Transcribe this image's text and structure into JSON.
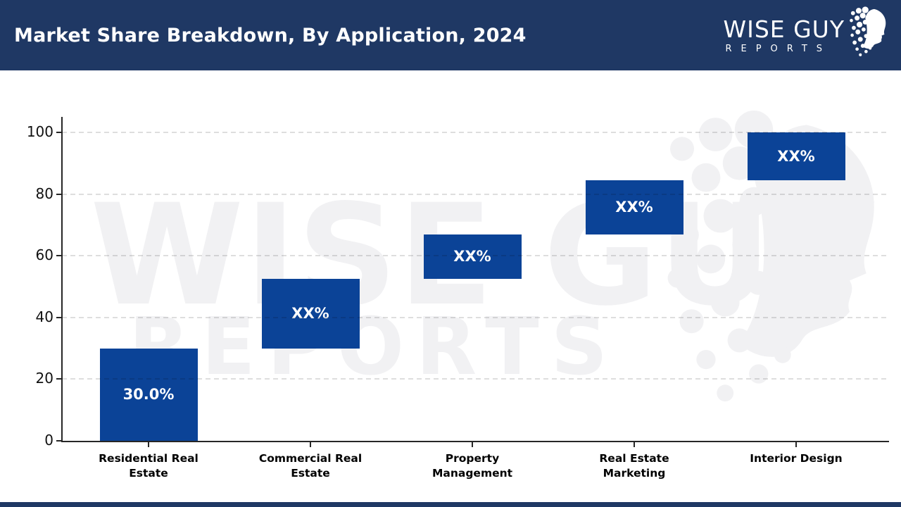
{
  "header": {
    "title": "Market Share Breakdown, By Application, 2024",
    "logo": {
      "line1": "WISE GUY",
      "line2": "REPORTS"
    }
  },
  "watermark": {
    "line1": "WISE GUY",
    "line2": "REPORTS"
  },
  "colors": {
    "header_bg": "#1f3864",
    "footer_bg": "#1f3864",
    "bar": "#0b4397",
    "bar_label": "#ffffff",
    "axis": "#262626",
    "gridline": "rgba(0,0,0,0.13)",
    "watermark": "#f1f1f3",
    "title_text": "#ffffff"
  },
  "chart_data": {
    "type": "bar",
    "subtype": "waterfall",
    "title": "Market Share Breakdown, By Application, 2024",
    "categories": [
      "Residential Real Estate",
      "Commercial Real Estate",
      "Property Management",
      "Real Estate Marketing",
      "Interior Design"
    ],
    "series": [
      {
        "name": "Market Share",
        "segments": [
          {
            "category": "Residential Real Estate",
            "start": 0,
            "end": 30,
            "label": "30.0%"
          },
          {
            "category": "Commercial Real Estate",
            "start": 30,
            "end": 52.5,
            "label": "XX%"
          },
          {
            "category": "Property Management",
            "start": 52.5,
            "end": 67,
            "label": "XX%"
          },
          {
            "category": "Real Estate Marketing",
            "start": 67,
            "end": 84.5,
            "label": "XX%"
          },
          {
            "category": "Interior Design",
            "start": 84.5,
            "end": 100,
            "label": "XX%"
          }
        ]
      }
    ],
    "xlabel": "",
    "ylabel": "",
    "ylim": [
      0,
      100
    ],
    "yticks": [
      0,
      20,
      40,
      60,
      80,
      100
    ],
    "grid": "horizontal-dashed",
    "legend": "none"
  }
}
